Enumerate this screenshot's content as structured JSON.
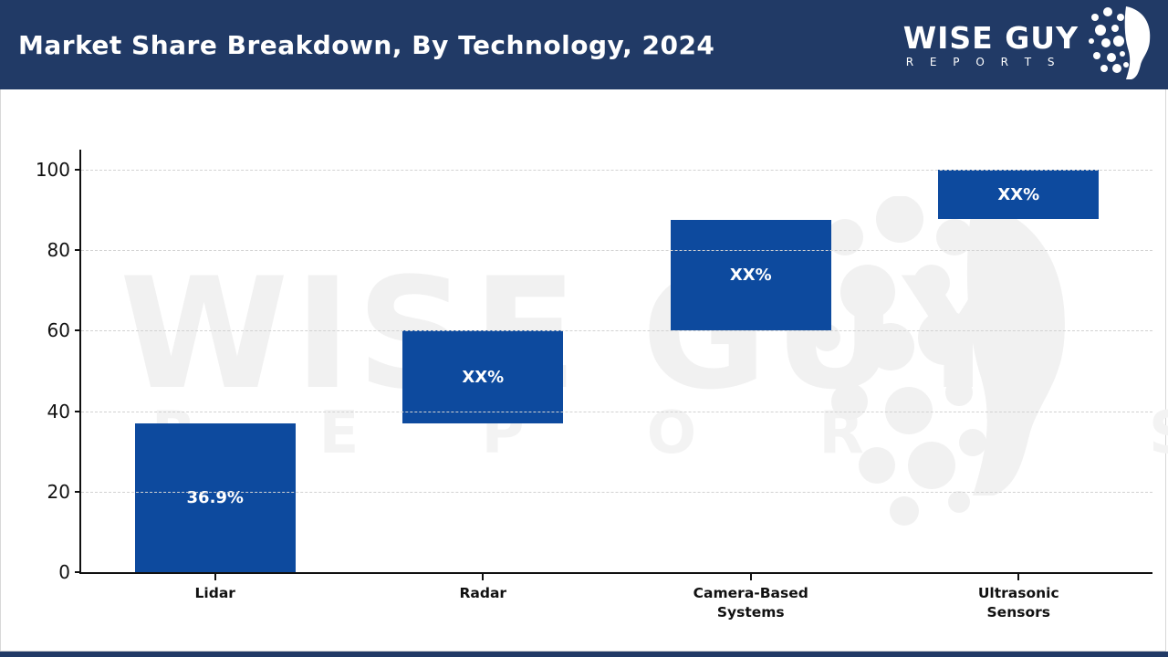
{
  "header": {
    "title": "Market Share Breakdown, By Technology, 2024",
    "logo": {
      "line1": "WISE GUY",
      "line2": "R E P O R T S"
    }
  },
  "watermark": {
    "line1": "WISE GUY",
    "line2": "R E P O R T S"
  },
  "colors": {
    "header_bg": "#213a66",
    "footer_bg": "#213a66",
    "bar": "#0d4a9e",
    "bar_label": "#ffffff",
    "grid": "#d2d2d2",
    "axis": "#111111",
    "watermark": "#f1f1f1"
  },
  "chart_data": {
    "type": "bar",
    "subtype": "waterfall",
    "title": "Market Share Breakdown, By Technology, 2024",
    "categories": [
      "Lidar",
      "Radar",
      "Camera-Based Systems",
      "Ultrasonic Sensors"
    ],
    "segments": [
      {
        "category": "Lidar",
        "start": 0,
        "end": 36.9,
        "label": "36.9%"
      },
      {
        "category": "Radar",
        "start": 36.9,
        "end": 60.0,
        "label": "XX%"
      },
      {
        "category": "Camera-Based Systems",
        "start": 60.0,
        "end": 87.5,
        "label": "XX%"
      },
      {
        "category": "Ultrasonic Sensors",
        "start": 87.7,
        "end": 100.0,
        "label": "XX%"
      }
    ],
    "yticks": [
      0,
      20,
      40,
      60,
      80,
      100
    ],
    "ylim": [
      0,
      100
    ],
    "xlabel": "",
    "ylabel": "",
    "grid": "horizontal-dashed",
    "legend": "none"
  }
}
